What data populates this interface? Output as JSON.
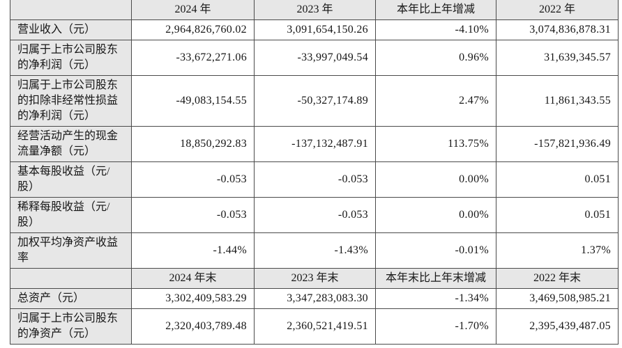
{
  "colors": {
    "header_bg": "#e7e7e7",
    "cell_bg": "#ffffff",
    "border": "#4a4a4a",
    "text": "#161616"
  },
  "chart_data": {
    "type": "table",
    "title": "",
    "sections": [
      {
        "header_cells": [
          "",
          "2024 年",
          "2023 年",
          "本年比上年增减",
          "2022 年"
        ]
      },
      {
        "header_cells": [
          "",
          "2024 年末",
          "2023 年末",
          "本年末比上年末增减",
          "2022 年末"
        ]
      }
    ],
    "rows": [
      {
        "kind": "colheader",
        "cells": [
          "",
          "2024 年",
          "2023 年",
          "本年比上年增减",
          "2022 年"
        ]
      },
      {
        "kind": "data",
        "cells": [
          "营业收入（元）",
          "2,964,826,760.02",
          "3,091,654,150.26",
          "-4.10%",
          "3,074,836,878.31"
        ]
      },
      {
        "kind": "data",
        "cells": [
          "归属于上市公司股东的净利润（元）",
          "-33,672,271.06",
          "-33,997,049.54",
          "0.96%",
          "31,639,345.57"
        ]
      },
      {
        "kind": "data",
        "cells": [
          "归属于上市公司股东的扣除非经常性损益的净利润（元）",
          "-49,083,154.55",
          "-50,327,174.89",
          "2.47%",
          "11,861,343.55"
        ]
      },
      {
        "kind": "data",
        "cells": [
          "经营活动产生的现金流量净额（元）",
          "18,850,292.83",
          "-137,132,487.91",
          "113.75%",
          "-157,821,936.49"
        ]
      },
      {
        "kind": "data",
        "cells": [
          "基本每股收益（元/股）",
          "-0.053",
          "-0.053",
          "0.00%",
          "0.051"
        ]
      },
      {
        "kind": "data",
        "cells": [
          "稀释每股收益（元/股）",
          "-0.053",
          "-0.053",
          "0.00%",
          "0.051"
        ]
      },
      {
        "kind": "data",
        "cells": [
          "加权平均净资产收益率",
          "-1.44%",
          "-1.43%",
          "-0.01%",
          "1.37%"
        ]
      },
      {
        "kind": "colheader",
        "cells": [
          "",
          "2024 年末",
          "2023 年末",
          "本年末比上年末增减",
          "2022 年末"
        ]
      },
      {
        "kind": "data",
        "cells": [
          "总资产（元）",
          "3,302,409,583.29",
          "3,347,283,083.30",
          "-1.34%",
          "3,469,508,985.21"
        ]
      },
      {
        "kind": "data",
        "cells": [
          "归属于上市公司股东的净资产（元）",
          "2,320,403,789.48",
          "2,360,521,419.51",
          "-1.70%",
          "2,395,439,487.05"
        ]
      }
    ]
  }
}
